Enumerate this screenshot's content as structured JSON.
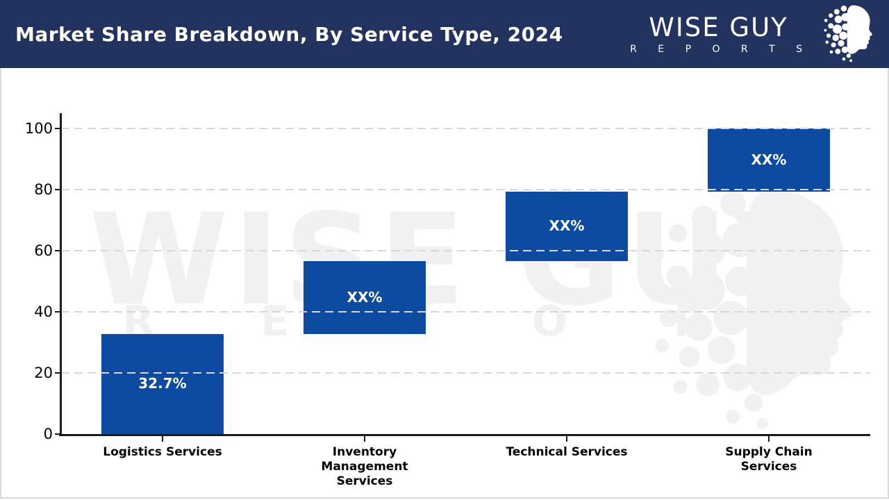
{
  "header": {
    "title": "Market Share Breakdown, By Service Type, 2024",
    "background_color": "#22335f",
    "brand": {
      "name": "WISE GUY",
      "subname": "R E P O R T S"
    }
  },
  "watermark": {
    "line1": "WISE GUY",
    "line2": "R E P O R T S"
  },
  "chart_data": {
    "type": "bar",
    "subtype": "waterfall",
    "title": "Market Share Breakdown, By Service Type, 2024",
    "categories": [
      "Logistics Services",
      "Inventory\nManagement\nServices",
      "Technical Services",
      "Supply Chain\nServices"
    ],
    "series": [
      {
        "name": "Market share (%)",
        "segments": [
          {
            "category": "Logistics Services",
            "start": 0,
            "end": 32.7,
            "label": "32.7%"
          },
          {
            "category": "Inventory Management Services",
            "start": 32.7,
            "end": 56.6,
            "label": "XX%"
          },
          {
            "category": "Technical Services",
            "start": 56.6,
            "end": 79.3,
            "label": "XX%"
          },
          {
            "category": "Supply Chain Services",
            "start": 79.3,
            "end": 100,
            "label": "XX%"
          }
        ]
      }
    ],
    "xlabel": "",
    "ylabel": "",
    "ylim": [
      0,
      105
    ],
    "yticks": [
      0,
      20,
      40,
      60,
      80,
      100
    ],
    "grid": "horizontal-dashed",
    "legend": "none",
    "bar_color": "#0c4b9f",
    "bar_label_color": "#ffffff",
    "axis_color": "#1a1a1a"
  }
}
